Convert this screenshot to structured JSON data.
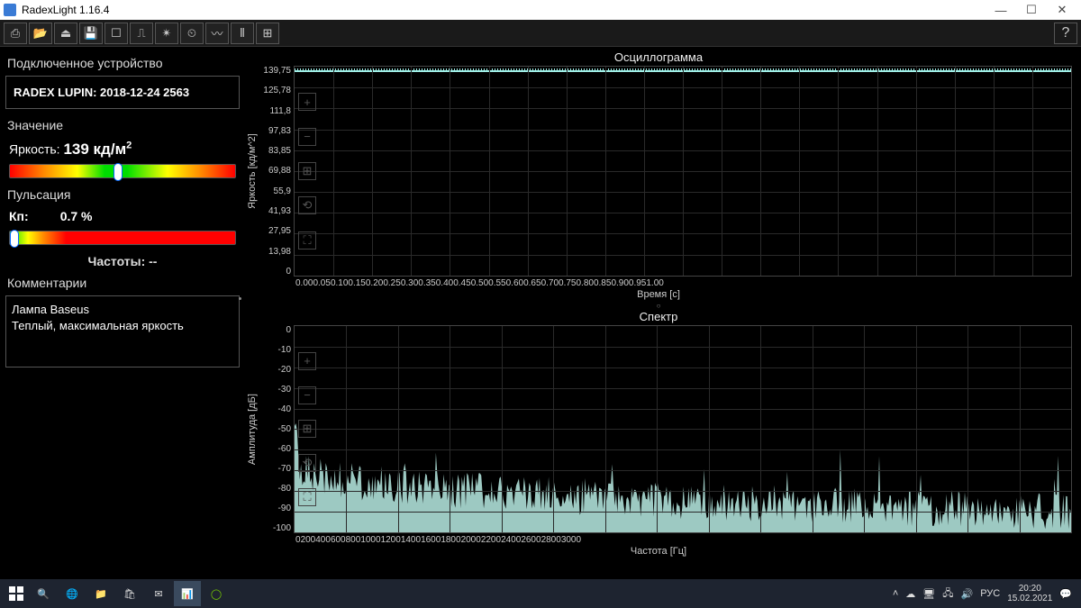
{
  "window": {
    "title": "RadexLight 1.16.4"
  },
  "toolbar_icons": [
    "⎙",
    "📂",
    "⏏",
    "💾",
    "☐",
    "⎍",
    "✴",
    "⏲",
    "〰",
    "⫴",
    "⊞"
  ],
  "sidebar": {
    "device_section": "Подключенное устройство",
    "device_name": "RADEX LUPIN: 2018-12-24 2563",
    "value_section": "Значение",
    "brightness_label": "Яркость:",
    "brightness_value": "139 кд/м",
    "brightness_marker_pct": 48,
    "pulse_section": "Пульсация",
    "kp_label": "Кп:",
    "kp_value": "0.7 %",
    "pulse_marker_pct": 2,
    "freq_label": "Частоты: --",
    "comments_section": "Комментарии",
    "comment_line1": "Лампа Baseus",
    "comment_line2": "Теплый, максимальная яркость"
  },
  "osc": {
    "title": "Осциллограмма",
    "y_label": "Яркость [кд/м^2]",
    "y_ticks": [
      "139,75",
      "125,78",
      "111,8",
      "97,83",
      "83,85",
      "69,88",
      "55,9",
      "41,93",
      "27,95",
      "13,98",
      "0"
    ],
    "x_ticks": [
      "0.00",
      "0.05",
      "0.10",
      "0.15",
      "0.20",
      "0.25",
      "0.30",
      "0.35",
      "0.40",
      "0.45",
      "0.50",
      "0.55",
      "0.60",
      "0.65",
      "0.70",
      "0.75",
      "0.80",
      "0.85",
      "0.90",
      "0.95",
      "1.00"
    ],
    "x_label": "Время [с]",
    "line_color": "#a0f0e8"
  },
  "spec": {
    "title": "Спектр",
    "y_label": "Амплитуда [дБ]",
    "y_ticks": [
      "0",
      "-10",
      "-20",
      "-30",
      "-40",
      "-50",
      "-60",
      "-70",
      "-80",
      "-90",
      "-100"
    ],
    "x_ticks": [
      "0",
      "200",
      "400",
      "600",
      "800",
      "1000",
      "1200",
      "1400",
      "1600",
      "1800",
      "2000",
      "2200",
      "2400",
      "2600",
      "2800",
      "3000"
    ],
    "x_label": "Частота [Гц]",
    "fill_color": "#b8ece4",
    "baseline_db": -100,
    "top_db": 0
  },
  "taskbar": {
    "lang": "РУС",
    "time": "20:20",
    "date": "15.02.2021"
  },
  "colors": {
    "bg": "#000000",
    "grid": "#2a2a2a",
    "border": "#444444",
    "text": "#dddddd"
  }
}
